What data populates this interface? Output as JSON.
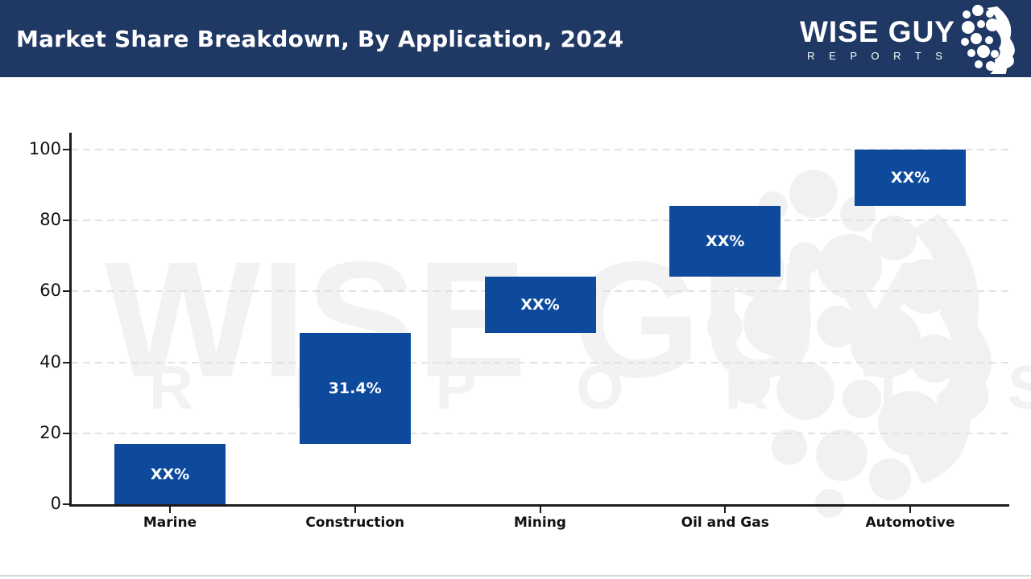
{
  "header": {
    "title": "Market Share Breakdown, By Application, 2024",
    "bg_color": "#1f3864",
    "logo": {
      "line1": "WISE GUY",
      "line2": "R E P O R T S"
    }
  },
  "watermark": {
    "line1": "WISE GUY",
    "line2": "R E P O R T S"
  },
  "chart_data": {
    "type": "bar",
    "subtype": "floating-waterfall",
    "title": "Market Share Breakdown, By Application, 2024",
    "categories": [
      "Marine",
      "Construction",
      "Mining",
      "Oil and Gas",
      "Automotive"
    ],
    "segments": [
      {
        "category": "Marine",
        "start": 0,
        "end": 17,
        "label": "XX%"
      },
      {
        "category": "Construction",
        "start": 17,
        "end": 48.4,
        "label": "31.4%"
      },
      {
        "category": "Mining",
        "start": 48.4,
        "end": 64.1,
        "label": "XX%"
      },
      {
        "category": "Oil and Gas",
        "start": 64.1,
        "end": 84.1,
        "label": "XX%"
      },
      {
        "category": "Automotive",
        "start": 84.1,
        "end": 100,
        "label": "XX%"
      }
    ],
    "ylim": [
      0,
      100
    ],
    "yticks": [
      0,
      20,
      40,
      60,
      80,
      100
    ],
    "grid": {
      "horizontal": true,
      "style": "dashed",
      "color": "#e2e2e2"
    },
    "bar_color": "#0d4a9c",
    "bar_label_color": "#ffffff",
    "legend": null
  }
}
